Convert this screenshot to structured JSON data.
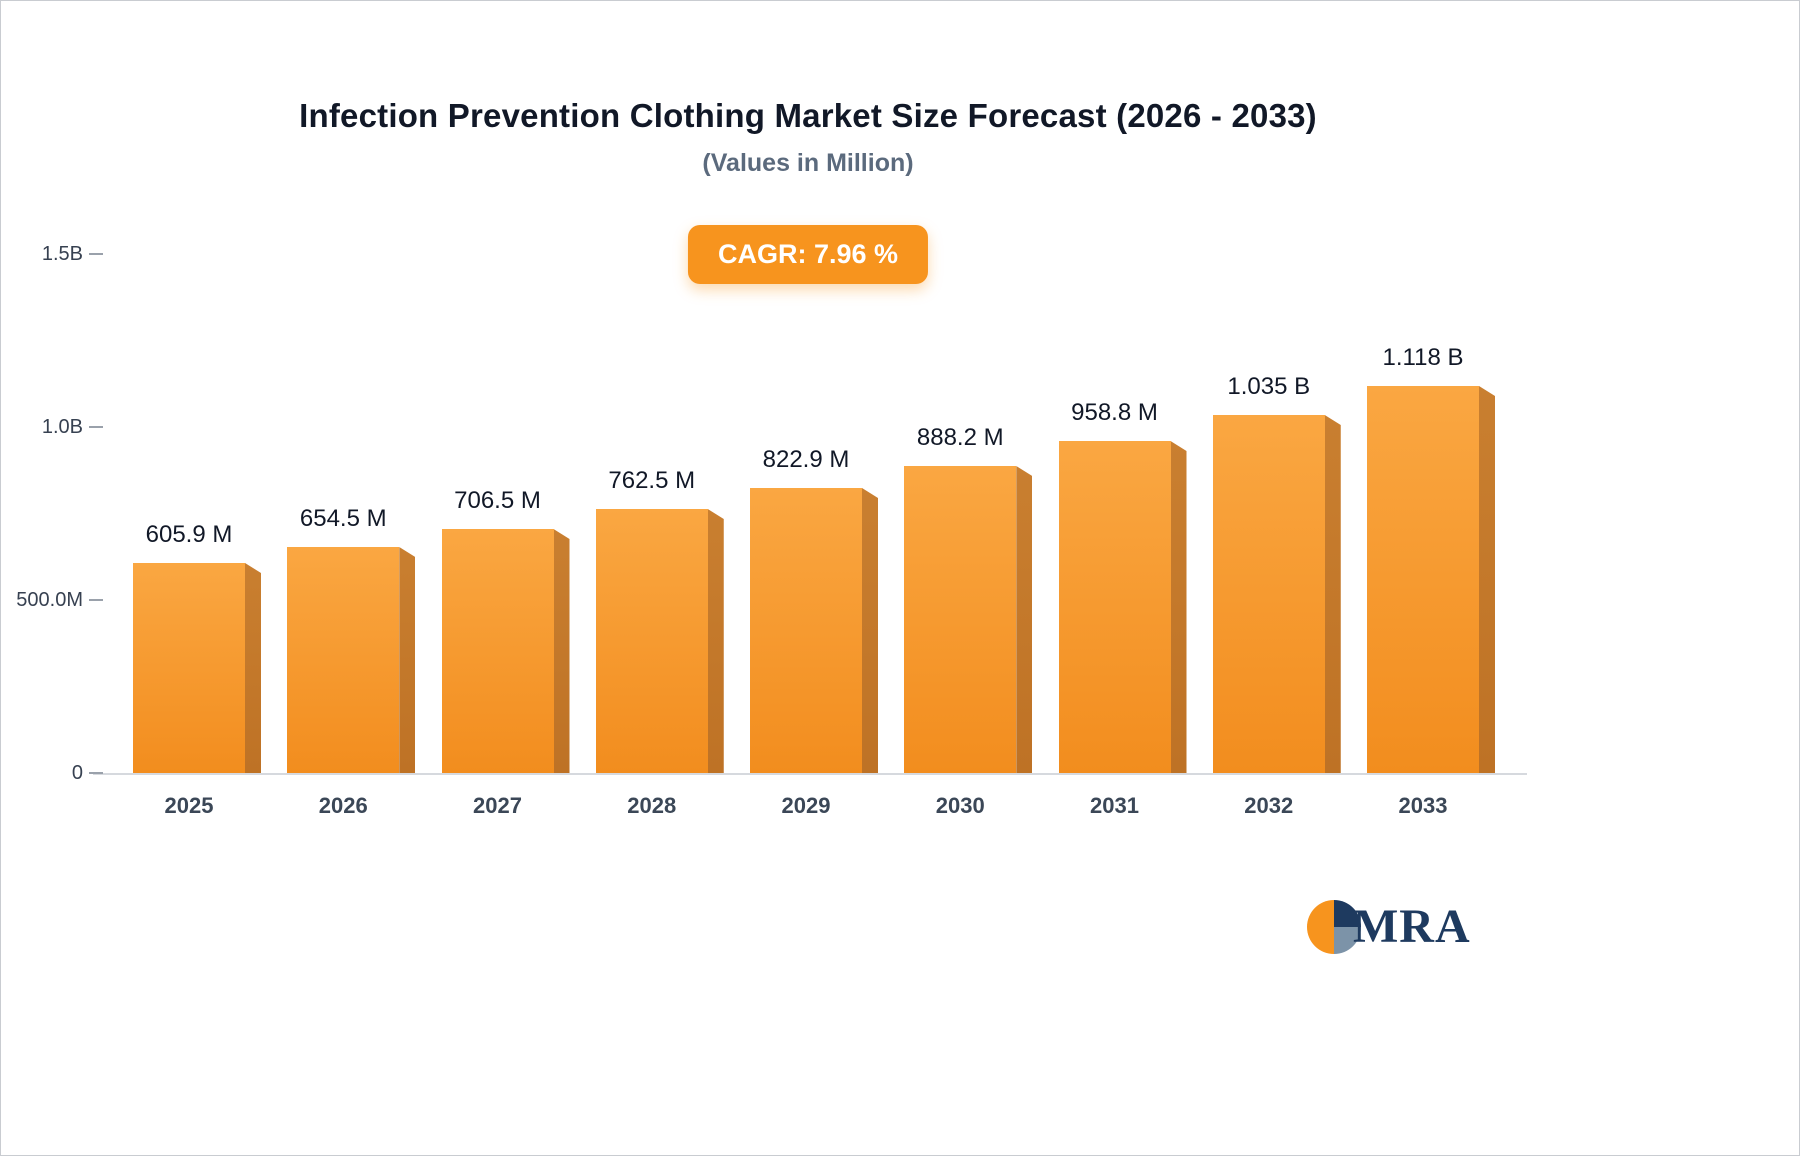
{
  "title": "Infection Prevention Clothing Market Size Forecast (2026 - 2033)",
  "subtitle": "(Values in Million)",
  "cagr_label": "CAGR: 7.96 %",
  "brand": "MRA",
  "colors": {
    "bar_face_top": "#FAA742",
    "bar_face_bottom": "#F28D1E",
    "bar_side": "#C2772B",
    "badge": "#F7941E",
    "logo_navy": "#1E3A5F",
    "logo_orange": "#F7941E",
    "logo_bluegray": "#7C93A8"
  },
  "chart_data": {
    "type": "bar",
    "title": "Infection Prevention Clothing Market Size Forecast (2026 - 2033)",
    "subtitle": "(Values in Million)",
    "cagr_percent": 7.96,
    "categories": [
      "2025",
      "2026",
      "2027",
      "2028",
      "2029",
      "2030",
      "2031",
      "2032",
      "2033"
    ],
    "values": [
      605.9,
      654.5,
      706.5,
      762.5,
      822.9,
      888.2,
      958.8,
      1035,
      1118
    ],
    "value_labels": [
      "605.9 M",
      "654.5 M",
      "706.5 M",
      "762.5 M",
      "822.9 M",
      "888.2 M",
      "958.8 M",
      "1.035 B",
      "1.118 B"
    ],
    "unit": "Million",
    "xlabel": "",
    "ylabel": "",
    "ylim": [
      0,
      1500
    ],
    "yticks": [
      {
        "value": 0,
        "label": "0"
      },
      {
        "value": 500,
        "label": "500.0M"
      },
      {
        "value": 1000,
        "label": "1.0B"
      },
      {
        "value": 1500,
        "label": "1.5B"
      }
    ],
    "grid": false,
    "legend": false
  }
}
